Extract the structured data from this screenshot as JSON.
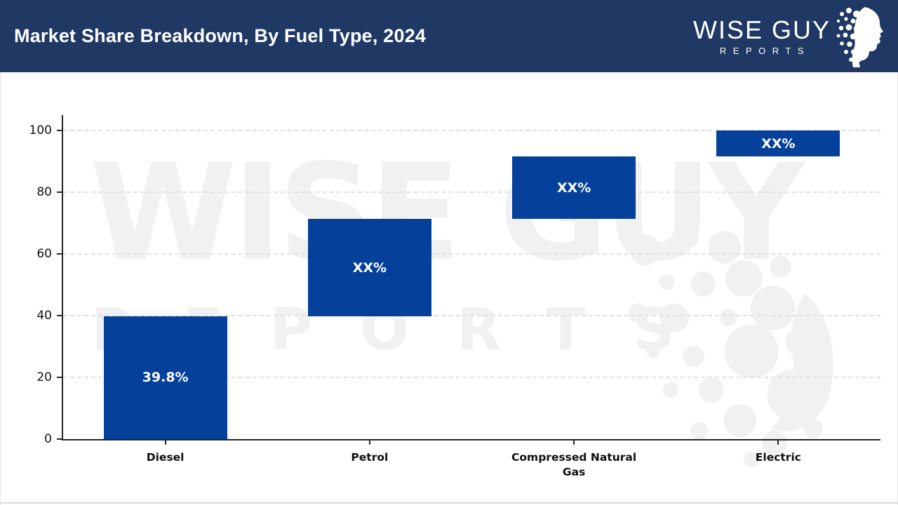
{
  "header": {
    "title": "Market Share Breakdown, By Fuel Type, 2024",
    "background": "#1f3864",
    "logo": {
      "line1": "WISE GUY",
      "line2": "REPORTS"
    }
  },
  "watermark": {
    "line1": "WISE GUY",
    "line2": "REPORTS",
    "color": "#f1f1f1"
  },
  "chart_data": {
    "type": "bar",
    "subtype": "waterfall-stacked-percentage",
    "title": "Market Share Breakdown, By Fuel Type, 2024",
    "categories": [
      "Diesel",
      "Petrol",
      "Compressed Natural Gas",
      "Electric"
    ],
    "segments": [
      {
        "label": "Diesel",
        "start": 0,
        "end": 39.8,
        "value": 39.8,
        "value_label": "39.8%"
      },
      {
        "label": "Petrol",
        "start": 39.8,
        "end": 71.3,
        "value": 31.5,
        "value_label": "XX%"
      },
      {
        "label": "Compressed Natural Gas",
        "start": 71.3,
        "end": 91.5,
        "value": 20.2,
        "value_label": "XX%"
      },
      {
        "label": "Electric",
        "start": 91.5,
        "end": 100,
        "value": 8.5,
        "value_label": "XX%"
      }
    ],
    "yticks": [
      0,
      20,
      40,
      60,
      80,
      100
    ],
    "ylim": [
      0,
      105
    ],
    "xlabel": "",
    "ylabel": "",
    "bar_color": "#05409b",
    "grid": "horizontal-dashed",
    "legend": "none"
  }
}
